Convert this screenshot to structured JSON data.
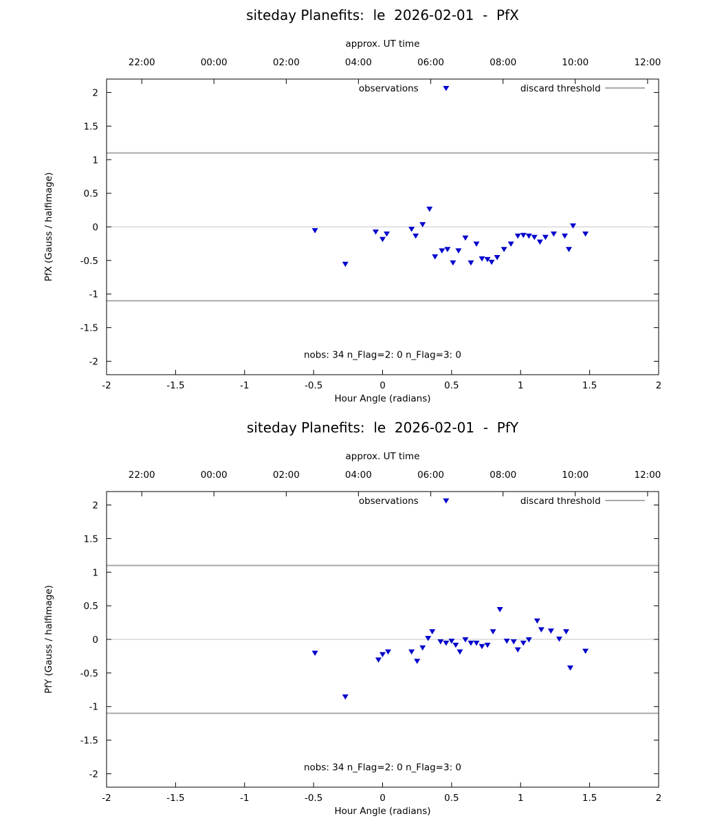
{
  "chart_data": [
    {
      "type": "scatter",
      "title": "siteday Planefits:  le  2026-02-01  -  PfX",
      "top_axis_label": "approx. UT time",
      "xlabel": "Hour Angle (radians)",
      "ylabel": "PfX (Gauss / halfimage)",
      "xlim": [
        -2,
        2
      ],
      "ylim": [
        -2.2,
        2.2
      ],
      "x_ticks": [
        -2,
        -1.5,
        -1,
        -0.5,
        0,
        0.5,
        1,
        1.5,
        2
      ],
      "y_ticks": [
        -2,
        -1.5,
        -1,
        -0.5,
        0,
        0.5,
        1,
        1.5,
        2
      ],
      "ut_ticks": [
        {
          "label": "22:00",
          "x": -1.745
        },
        {
          "label": "00:00",
          "x": -1.222
        },
        {
          "label": "02:00",
          "x": -0.698
        },
        {
          "label": "04:00",
          "x": -0.175
        },
        {
          "label": "06:00",
          "x": 0.349
        },
        {
          "label": "08:00",
          "x": 0.873
        },
        {
          "label": "10:00",
          "x": 1.396
        },
        {
          "label": "12:00",
          "x": 1.92
        }
      ],
      "threshold": 1.1,
      "threshold_color": "#a9a9a9",
      "zero_line_color": "#c4c4c4",
      "marker_color": "#0000cc",
      "legend": [
        {
          "label": "observations",
          "symbol": "triangle-down"
        },
        {
          "label": "discard threshold",
          "symbol": "line"
        }
      ],
      "annotation": "nobs: 34   n_Flag=2: 0   n_Flag=3: 0",
      "grid": false,
      "legend_position": "top-inside",
      "points": [
        [
          -0.49,
          -0.05
        ],
        [
          -0.27,
          -0.55
        ],
        [
          -0.05,
          -0.07
        ],
        [
          0.0,
          -0.18
        ],
        [
          0.03,
          -0.1
        ],
        [
          0.21,
          -0.03
        ],
        [
          0.24,
          -0.13
        ],
        [
          0.29,
          0.04
        ],
        [
          0.34,
          0.27
        ],
        [
          0.38,
          -0.44
        ],
        [
          0.43,
          -0.35
        ],
        [
          0.47,
          -0.33
        ],
        [
          0.51,
          -0.53
        ],
        [
          0.55,
          -0.35
        ],
        [
          0.6,
          -0.16
        ],
        [
          0.64,
          -0.53
        ],
        [
          0.68,
          -0.25
        ],
        [
          0.72,
          -0.47
        ],
        [
          0.76,
          -0.48
        ],
        [
          0.79,
          -0.52
        ],
        [
          0.83,
          -0.45
        ],
        [
          0.88,
          -0.33
        ],
        [
          0.93,
          -0.25
        ],
        [
          0.98,
          -0.13
        ],
        [
          1.02,
          -0.12
        ],
        [
          1.06,
          -0.13
        ],
        [
          1.1,
          -0.15
        ],
        [
          1.14,
          -0.22
        ],
        [
          1.18,
          -0.15
        ],
        [
          1.24,
          -0.1
        ],
        [
          1.32,
          -0.13
        ],
        [
          1.35,
          -0.33
        ],
        [
          1.38,
          0.02
        ],
        [
          1.47,
          -0.1
        ]
      ]
    },
    {
      "type": "scatter",
      "title": "siteday Planefits:  le  2026-02-01  -  PfY",
      "top_axis_label": "approx. UT time",
      "xlabel": "Hour Angle (radians)",
      "ylabel": "PfY (Gauss / halfimage)",
      "xlim": [
        -2,
        2
      ],
      "ylim": [
        -2.2,
        2.2
      ],
      "x_ticks": [
        -2,
        -1.5,
        -1,
        -0.5,
        0,
        0.5,
        1,
        1.5,
        2
      ],
      "y_ticks": [
        -2,
        -1.5,
        -1,
        -0.5,
        0,
        0.5,
        1,
        1.5,
        2
      ],
      "ut_ticks": [
        {
          "label": "22:00",
          "x": -1.745
        },
        {
          "label": "00:00",
          "x": -1.222
        },
        {
          "label": "02:00",
          "x": -0.698
        },
        {
          "label": "04:00",
          "x": -0.175
        },
        {
          "label": "06:00",
          "x": 0.349
        },
        {
          "label": "08:00",
          "x": 0.873
        },
        {
          "label": "10:00",
          "x": 1.396
        },
        {
          "label": "12:00",
          "x": 1.92
        }
      ],
      "threshold": 1.1,
      "threshold_color": "#a9a9a9",
      "zero_line_color": "#c4c4c4",
      "marker_color": "#0000cc",
      "legend": [
        {
          "label": "observations",
          "symbol": "triangle-down"
        },
        {
          "label": "discard threshold",
          "symbol": "line"
        }
      ],
      "annotation": "nobs: 34   n_Flag=2: 0   n_Flag=3: 0",
      "grid": false,
      "legend_position": "top-inside",
      "points": [
        [
          -0.49,
          -0.2
        ],
        [
          -0.27,
          -0.85
        ],
        [
          -0.03,
          -0.3
        ],
        [
          0.0,
          -0.22
        ],
        [
          0.04,
          -0.18
        ],
        [
          0.21,
          -0.18
        ],
        [
          0.25,
          -0.32
        ],
        [
          0.29,
          -0.12
        ],
        [
          0.33,
          0.02
        ],
        [
          0.36,
          0.12
        ],
        [
          0.42,
          -0.03
        ],
        [
          0.46,
          -0.05
        ],
        [
          0.5,
          -0.02
        ],
        [
          0.53,
          -0.08
        ],
        [
          0.56,
          -0.18
        ],
        [
          0.6,
          0.0
        ],
        [
          0.64,
          -0.05
        ],
        [
          0.68,
          -0.05
        ],
        [
          0.72,
          -0.1
        ],
        [
          0.76,
          -0.08
        ],
        [
          0.8,
          0.12
        ],
        [
          0.85,
          0.45
        ],
        [
          0.9,
          -0.02
        ],
        [
          0.95,
          -0.03
        ],
        [
          0.98,
          -0.15
        ],
        [
          1.02,
          -0.05
        ],
        [
          1.06,
          0.0
        ],
        [
          1.12,
          0.28
        ],
        [
          1.15,
          0.15
        ],
        [
          1.22,
          0.13
        ],
        [
          1.28,
          0.01
        ],
        [
          1.33,
          0.12
        ],
        [
          1.36,
          -0.42
        ],
        [
          1.47,
          -0.17
        ]
      ]
    }
  ]
}
